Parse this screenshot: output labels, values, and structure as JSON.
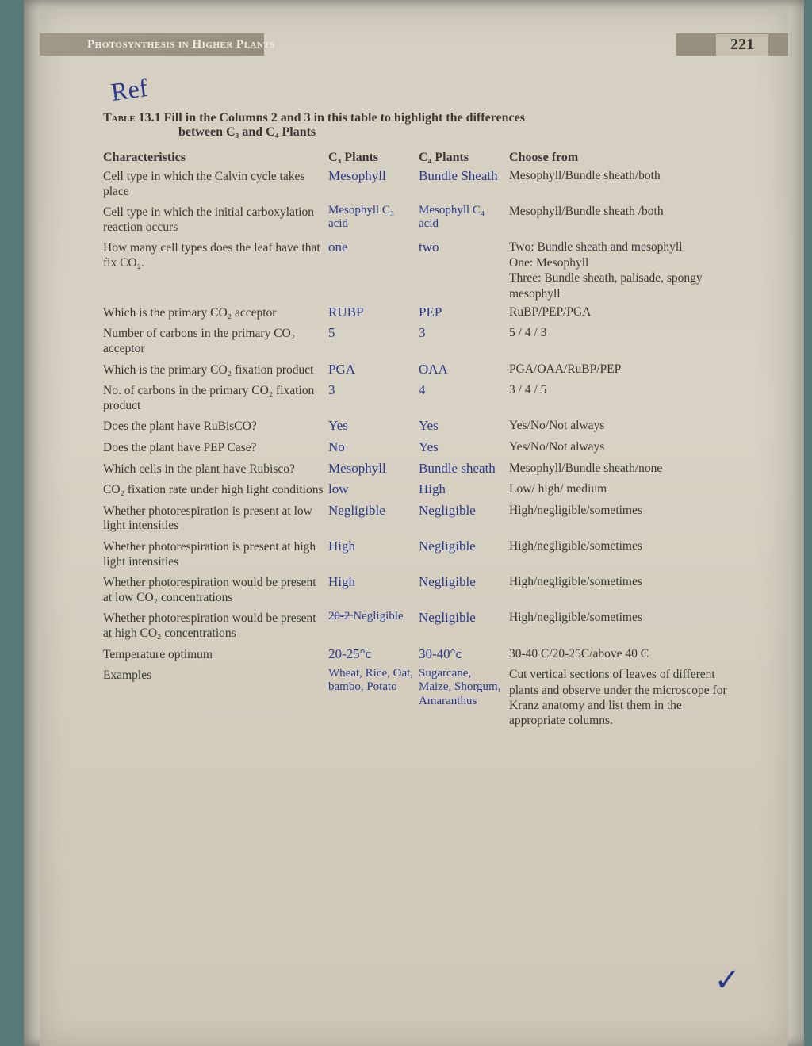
{
  "header": {
    "chapter_title": "Photosynthesis in Higher Plants",
    "page_number": "221"
  },
  "scribble": "Ref",
  "table": {
    "number": "Table 13.1",
    "instruction": "Fill in the Columns 2 and 3 in this table to highlight the differences",
    "subtitle": "between C₃ and C₄ Plants",
    "headers": {
      "col1": "Characteristics",
      "col2": "C₃ Plants",
      "col3": "C₄ Plants",
      "col4": "Choose from"
    },
    "rows": [
      {
        "char": "Cell type in which the Calvin cycle takes place",
        "c3": "Mesophyll",
        "c4": "Bundle Sheath",
        "opt": "Mesophyll/Bundle sheath/both"
      },
      {
        "char": "Cell type in which the initial carboxylation reaction occurs",
        "c3": "Mesophyll C₃ acid",
        "c4": "Mesophyll C₄ acid",
        "opt": "Mesophyll/Bundle sheath /both"
      },
      {
        "char": "How many cell types does the leaf have that fix CO₂.",
        "c3": "one",
        "c4": "two",
        "opt": "Two: Bundle sheath and mesophyll\nOne: Mesophyll\nThree: Bundle sheath, palisade, spongy mesophyll"
      },
      {
        "char": "Which is the primary CO₂ acceptor",
        "c3": "RUBP",
        "c4": "PEP",
        "opt": "RuBP/PEP/PGA"
      },
      {
        "char": "Number of carbons in the primary CO₂ acceptor",
        "c3": "5",
        "c4": "3",
        "opt": "5 / 4 / 3"
      },
      {
        "char": "Which is the primary CO₂ fixation product",
        "c3": "PGA",
        "c4": "OAA",
        "opt": "PGA/OAA/RuBP/PEP"
      },
      {
        "char": "No. of carbons in the primary CO₂ fixation product",
        "c3": "3",
        "c4": "4",
        "opt": "3 / 4 / 5"
      },
      {
        "char": "Does the plant have RuBisCO?",
        "c3": "Yes",
        "c4": "Yes",
        "opt": "Yes/No/Not always"
      },
      {
        "char": "Does the plant have PEP Case?",
        "c3": "No",
        "c4": "Yes",
        "opt": "Yes/No/Not always"
      },
      {
        "char": "Which cells in the plant have Rubisco?",
        "c3": "Mesophyll",
        "c4": "Bundle sheath",
        "opt": "Mesophyll/Bundle sheath/none"
      },
      {
        "char": "CO₂ fixation rate under high light conditions",
        "c3": "low",
        "c4": "High",
        "opt": "Low/ high/ medium"
      },
      {
        "char": "Whether photorespiration is present at low light intensities",
        "c3": "Negligible",
        "c4": "Negligible",
        "opt": "High/negligible/sometimes"
      },
      {
        "char": "Whether photorespiration is present at high light intensities",
        "c3": "High",
        "c4": "Negligible",
        "opt": "High/negligible/sometimes"
      },
      {
        "char": "Whether photorespiration would be present at low CO₂ concentrations",
        "c3": "High",
        "c4": "Negligible",
        "opt": "High/negligible/sometimes"
      },
      {
        "char": "Whether photorespiration would be present at high CO₂ concentrations",
        "c3": "2̶0̶-̶2̶ Negligible",
        "c4": "Negligible",
        "opt": "High/negligible/sometimes"
      },
      {
        "char": "Temperature optimum",
        "c3": "20-25°c",
        "c4": "30-40°c",
        "opt": "30-40 C/20-25C/above 40 C"
      },
      {
        "char": "Examples",
        "c3": "Wheat, Rice, Oat, bambo, Potato",
        "c4": "Sugarcane, Maize, Shorgum, Amaranthus",
        "opt": "Cut vertical sections of leaves of different plants and observe under the microscope for Kranz anatomy and list them in the appropriate columns."
      }
    ]
  },
  "checkmark": "✓",
  "colors": {
    "page_bg": "#d4cfc2",
    "text": "#3a3730",
    "handwriting": "#2a3a8a",
    "band": "#98907e"
  }
}
